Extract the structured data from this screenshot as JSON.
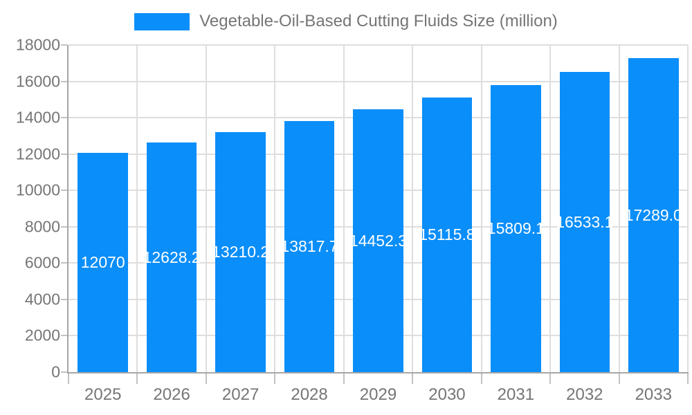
{
  "chart": {
    "colors": {
      "bar": "#0a8ef9",
      "axis": "#a6a6a6",
      "grid": "#dedede",
      "tick_mark": "#c2c2c2",
      "tick_text": "#757575",
      "bar_label_text": "#ffffff",
      "background": "#ffffff"
    }
  },
  "chart_data": {
    "type": "bar",
    "title": "Vegetable-Oil-Based Cutting Fluids Size (million)",
    "categories": [
      "2025",
      "2026",
      "2027",
      "2028",
      "2029",
      "2030",
      "2031",
      "2032",
      "2033"
    ],
    "series": [
      {
        "name": "Vegetable-Oil-Based Cutting Fluids Size (million)",
        "values": [
          12070,
          12628.2,
          13210.2,
          13817.7,
          14452.3,
          15115.8,
          15809.1,
          16533.1,
          17289.0
        ],
        "labels": [
          "12070",
          "12628.2",
          "13210.2",
          "13817.7",
          "14452.3",
          "15115.8",
          "15809.1",
          "16533.1",
          "17289.0"
        ],
        "color": "#0a8ef9"
      }
    ],
    "xlabel": "",
    "ylabel": "",
    "ylim": [
      0,
      18000
    ],
    "ytick_step": 2000,
    "yticks": [
      0,
      2000,
      4000,
      6000,
      8000,
      10000,
      12000,
      14000,
      16000,
      18000
    ],
    "grid": true,
    "legend_position": "top",
    "bar_value_labels_position": "center-of-bar"
  }
}
